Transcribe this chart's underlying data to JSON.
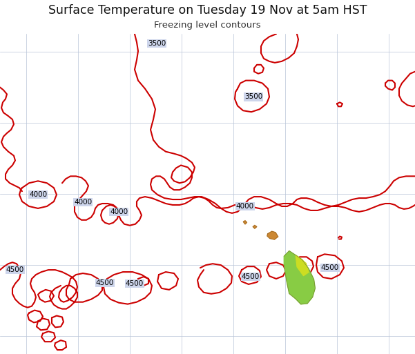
{
  "title": "Surface Temperature on Tuesday 19 Nov at 5am HST",
  "subtitle": "Freezing level contours",
  "ocean_color": "#cdd5eb",
  "contour_color": "#cc0000",
  "grid_color": "#b8c4d8",
  "title_bg": "#ffffff",
  "border_color": "#c8b464",
  "fig_width": 6.01,
  "fig_height": 5.13,
  "lon_min": -167.0,
  "lon_max": -151.0,
  "lat_min": 17.5,
  "lat_max": 26.5,
  "title_fontsize": 12.5,
  "subtitle_fontsize": 9.5,
  "contour_lw": 1.5,
  "label_fontsize": 7.5,
  "grid_lons": [
    -166,
    -164,
    -162,
    -160,
    -158,
    -156,
    -154,
    -152
  ],
  "grid_lats": [
    18,
    20,
    22,
    24,
    26
  ]
}
